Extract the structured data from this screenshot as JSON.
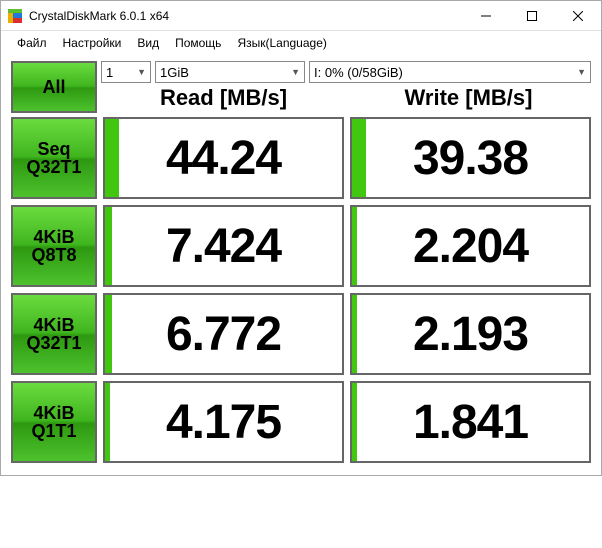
{
  "window": {
    "title": "CrystalDiskMark 6.0.1 x64",
    "icon_colors": {
      "top": "#5bbf2e",
      "left": "#e8b000",
      "right": "#2078d8",
      "bottom": "#d83030"
    }
  },
  "menu": {
    "file": "Файл",
    "settings": "Настройки",
    "view": "Вид",
    "help": "Помощь",
    "language": "Язык(Language)"
  },
  "controls": {
    "all_label": "All",
    "runs": "1",
    "size": "1GiB",
    "drive": "I: 0% (0/58GiB)"
  },
  "headers": {
    "read": "Read [MB/s]",
    "write": "Write [MB/s]"
  },
  "colors": {
    "button_gradient_top": "#6bdc3f",
    "button_gradient_bottom": "#2e9910",
    "bar_fill": "#42c710",
    "cell_border": "#666666",
    "background": "#ffffff"
  },
  "rows": [
    {
      "label1": "Seq",
      "label2": "Q32T1",
      "read": "44.24",
      "read_bar_pct": 6,
      "write": "39.38",
      "write_bar_pct": 6
    },
    {
      "label1": "4KiB",
      "label2": "Q8T8",
      "read": "7.424",
      "read_bar_pct": 3,
      "write": "2.204",
      "write_bar_pct": 2
    },
    {
      "label1": "4KiB",
      "label2": "Q32T1",
      "read": "6.772",
      "read_bar_pct": 3,
      "write": "2.193",
      "write_bar_pct": 2
    },
    {
      "label1": "4KiB",
      "label2": "Q1T1",
      "read": "4.175",
      "read_bar_pct": 2,
      "write": "1.841",
      "write_bar_pct": 2
    }
  ]
}
